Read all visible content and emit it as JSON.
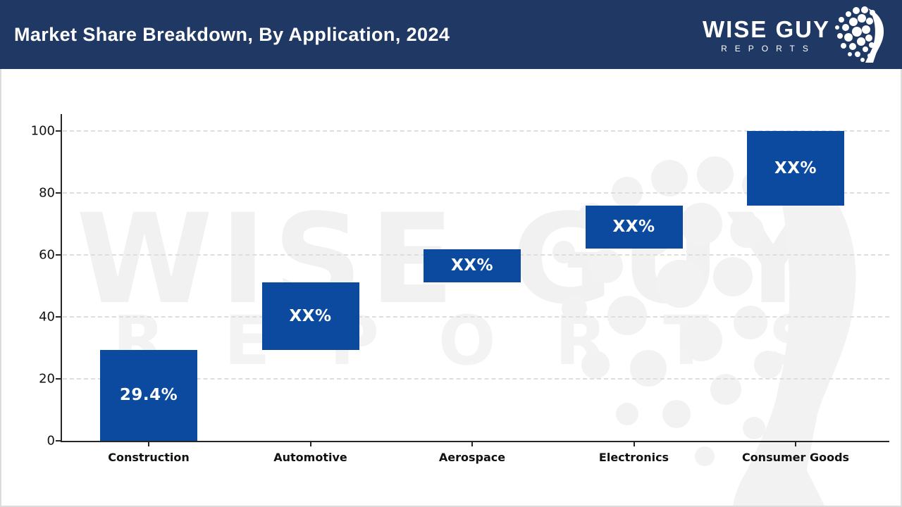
{
  "header": {
    "title": "Market Share Breakdown, By Application, 2024",
    "logo": {
      "line1": "WISE GUY",
      "line2": "REPORTS"
    }
  },
  "watermark": {
    "line1": "WISE GUY",
    "line2": "REPORTS"
  },
  "colors": {
    "header_bg": "#1f3864",
    "bar": "#0b4a9f",
    "bar_label_text": "#ffffff",
    "grid": "#dedede",
    "axis": "#262626",
    "watermark": "#f1f1f1",
    "page_border": "#dcdcdc"
  },
  "chart_data": {
    "type": "bar",
    "subtype": "waterfall",
    "title": "Market Share Breakdown, By Application, 2024",
    "categories": [
      "Construction",
      "Automotive",
      "Aerospace",
      "Electronics",
      "Consumer Goods"
    ],
    "segments": [
      {
        "category": "Construction",
        "start": 0,
        "end": 29.4,
        "label": "29.4%"
      },
      {
        "category": "Automotive",
        "start": 29.4,
        "end": 51.1,
        "label": "XX%"
      },
      {
        "category": "Aerospace",
        "start": 51.2,
        "end": 61.8,
        "label": "XX%"
      },
      {
        "category": "Electronics",
        "start": 62.0,
        "end": 76.0,
        "label": "XX%"
      },
      {
        "category": "Consumer Goods",
        "start": 76.0,
        "end": 100.0,
        "label": "XX%"
      }
    ],
    "xlabel": "",
    "ylabel": "",
    "ylim": [
      0,
      100
    ],
    "yticks": [
      0,
      20,
      40,
      60,
      80,
      100
    ],
    "grid": "horizontal-dashed",
    "legend": "none"
  }
}
